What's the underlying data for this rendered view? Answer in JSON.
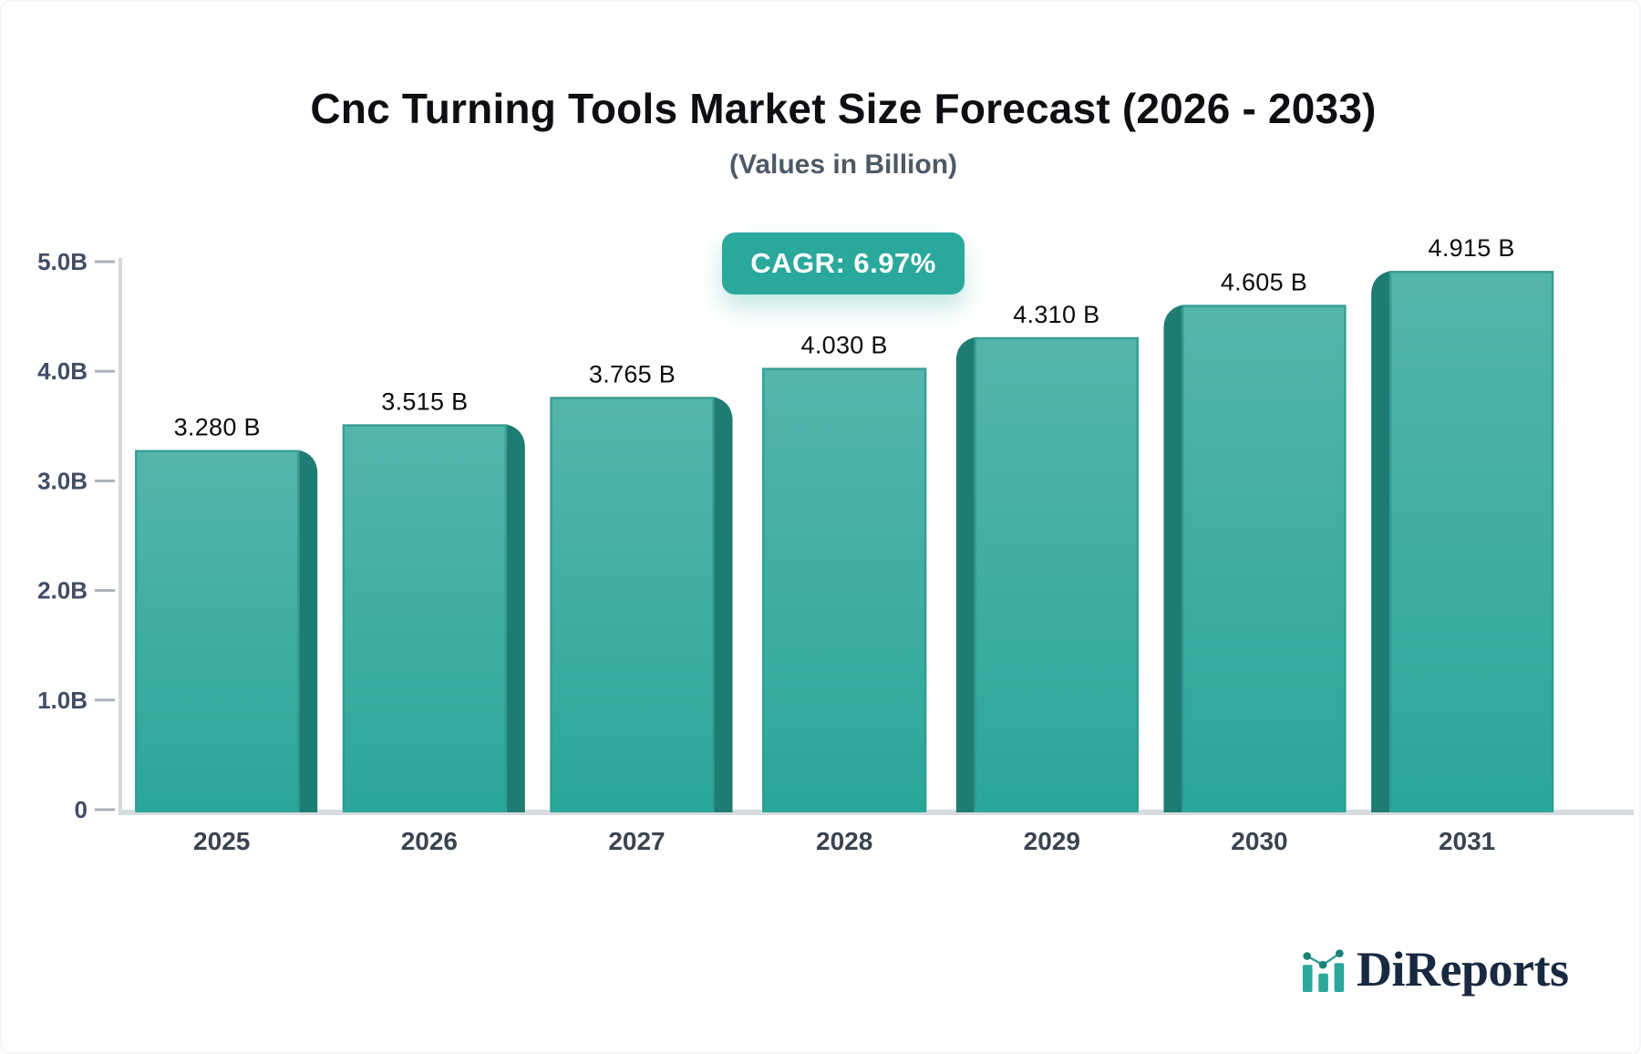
{
  "header": {
    "title": "Cnc Turning Tools Market Size Forecast (2026 - 2033)",
    "subtitle": "(Values in Billion)"
  },
  "badge": {
    "label": "CAGR: 6.97%"
  },
  "logo": {
    "text": "DiReports"
  },
  "chart_data": {
    "type": "bar",
    "categories": [
      "2025",
      "2026",
      "2027",
      "2028",
      "2029",
      "2030",
      "2031"
    ],
    "values": [
      3.28,
      3.515,
      3.765,
      4.03,
      4.31,
      4.605,
      4.915
    ],
    "value_labels": [
      "3.280 B",
      "3.515 B",
      "3.765 B",
      "4.030 B",
      "4.310 B",
      "4.605 B",
      "4.915 B"
    ],
    "title": "Cnc Turning Tools Market Size Forecast (2026 - 2033)",
    "xlabel": "",
    "ylabel": "",
    "ylim": [
      0,
      5
    ],
    "y_tick_labels": [
      "0",
      "1.0B",
      "2.0B",
      "3.0B",
      "4.0B",
      "5.0B"
    ],
    "grid": false,
    "legend": false,
    "colors": {
      "bar_top": "#55b5ab",
      "bar_bottom": "#2aa79a",
      "bar_side": "#1f7c73",
      "bar_edge": "#2f978d",
      "axis_line": "#d4d8dd",
      "baseline": "#d8dce0",
      "tick_dash": "#aab1bb",
      "accent": "#2aa89c"
    }
  }
}
